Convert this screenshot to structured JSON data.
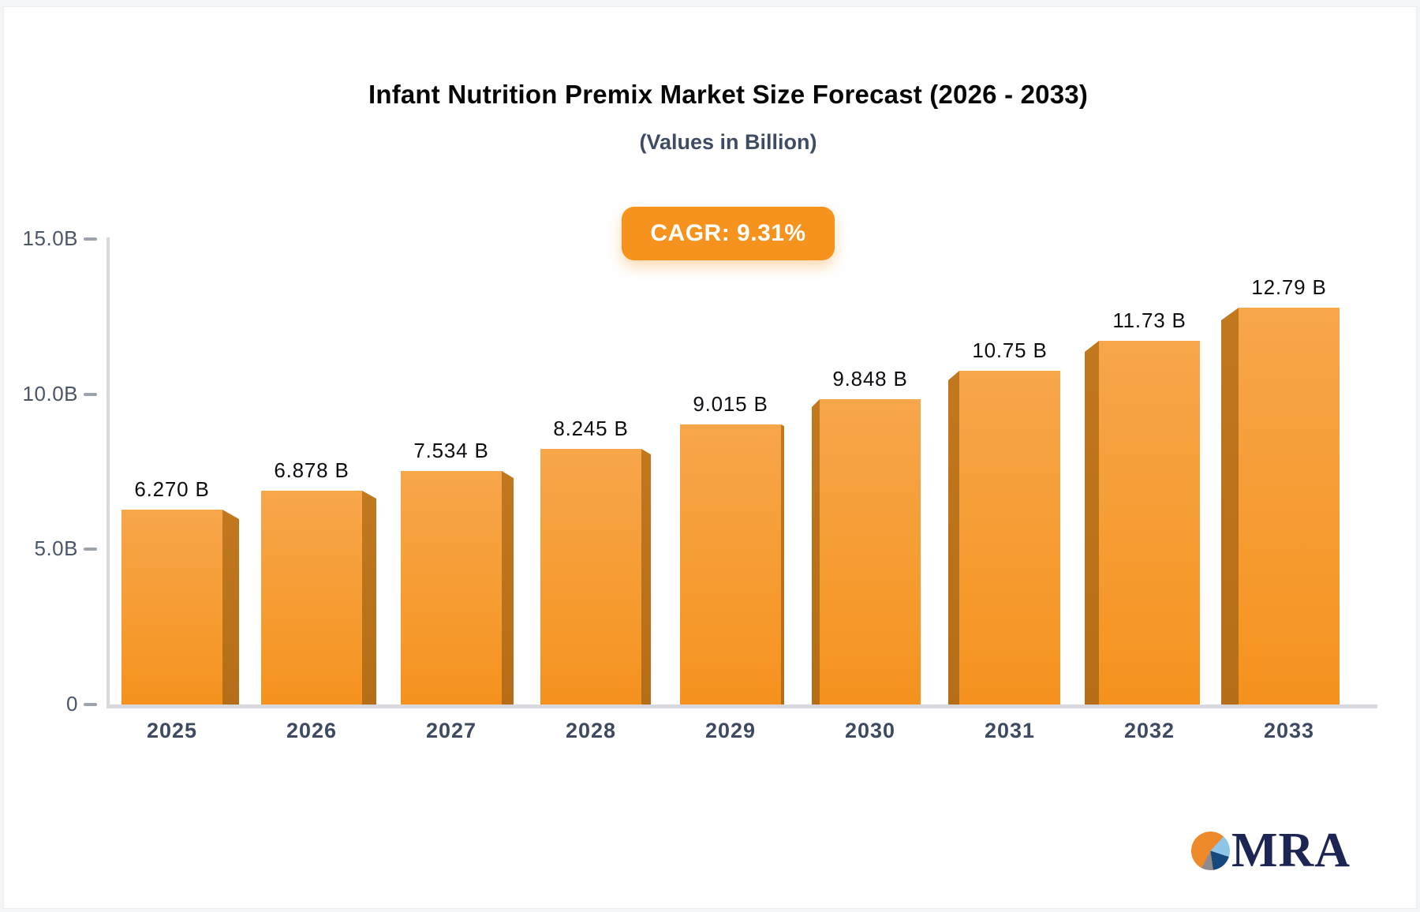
{
  "header": {
    "title": "Infant Nutrition Premix Market Size Forecast (2026 - 2033)",
    "subtitle": "(Values in Billion)",
    "cagr_badge": "CAGR: 9.31%"
  },
  "chart_data": {
    "type": "bar",
    "title": "Infant Nutrition Premix Market Size Forecast (2026 - 2033)",
    "subtitle": "(Values in Billion)",
    "cagr": "9.31%",
    "categories": [
      "2025",
      "2026",
      "2027",
      "2028",
      "2029",
      "2030",
      "2031",
      "2032",
      "2033"
    ],
    "values": [
      6.27,
      6.878,
      7.534,
      8.245,
      9.015,
      9.848,
      10.75,
      11.73,
      12.79
    ],
    "bar_labels": [
      "6.270 B",
      "6.878 B",
      "7.534 B",
      "8.245 B",
      "9.015 B",
      "9.848 B",
      "10.75 B",
      "11.73 B",
      "12.79 B"
    ],
    "xlabel": "",
    "ylabel": "",
    "ylim": [
      0,
      15
    ],
    "y_ticks": [
      {
        "value": 0,
        "label": "0"
      },
      {
        "value": 5,
        "label": "5.0B"
      },
      {
        "value": 10,
        "label": "10.0B"
      },
      {
        "value": 15,
        "label": "15.0B"
      }
    ],
    "grid": false,
    "legend": false,
    "style": "3d-perspective-bars",
    "colors": {
      "bar_face_top": "#F7A64B",
      "bar_face_bottom": "#F5921E",
      "bar_side": "#BB7120",
      "axis_line": "#D7D9DE",
      "tick_dash": "#9CA3AD",
      "axis_label": "#4A5568",
      "year_label": "#3D4A61",
      "value_label": "#0C0E12",
      "badge_background": "#F6921E",
      "badge_text": "#FFFFFF"
    }
  },
  "logo": {
    "text": "MRA",
    "text_color": "#1C2553",
    "pie_colors": {
      "orange": "#EE8A2A",
      "light_blue": "#8EC6E8",
      "dark_blue": "#15497E",
      "gray": "#8F8A8C"
    }
  }
}
